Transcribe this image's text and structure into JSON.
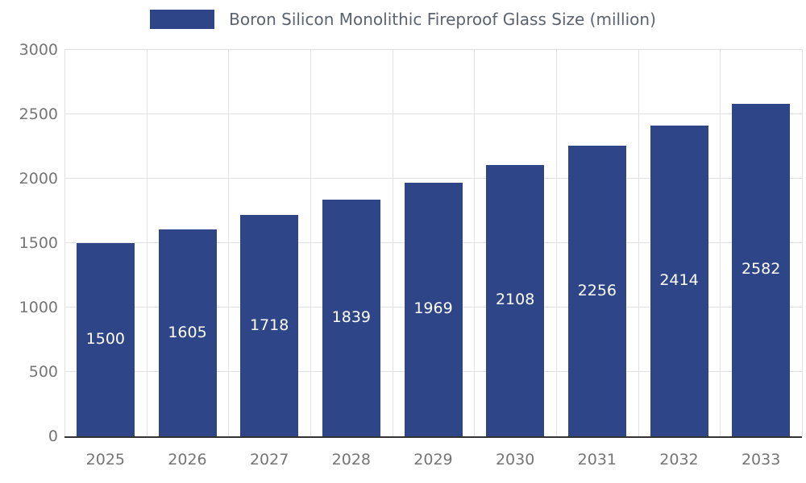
{
  "chart_data": {
    "type": "bar",
    "title": "Boron Silicon Monolithic Fireproof Glass Size (million)",
    "categories": [
      "2025",
      "2026",
      "2027",
      "2028",
      "2029",
      "2030",
      "2031",
      "2032",
      "2033"
    ],
    "values": [
      1500,
      1605,
      1718,
      1839,
      1969,
      2108,
      2256,
      2414,
      2582
    ],
    "xlabel": "",
    "ylabel": "",
    "ylim": [
      0,
      3000
    ],
    "ytick_step": 500,
    "grid": "on",
    "legend_position": "top",
    "bar_color": "#2e4687",
    "value_label_color": "#ffffff",
    "axis_text_color": "#757575",
    "legend_text_color": "#5b6370",
    "gridline_color": "#e0e0e0"
  }
}
